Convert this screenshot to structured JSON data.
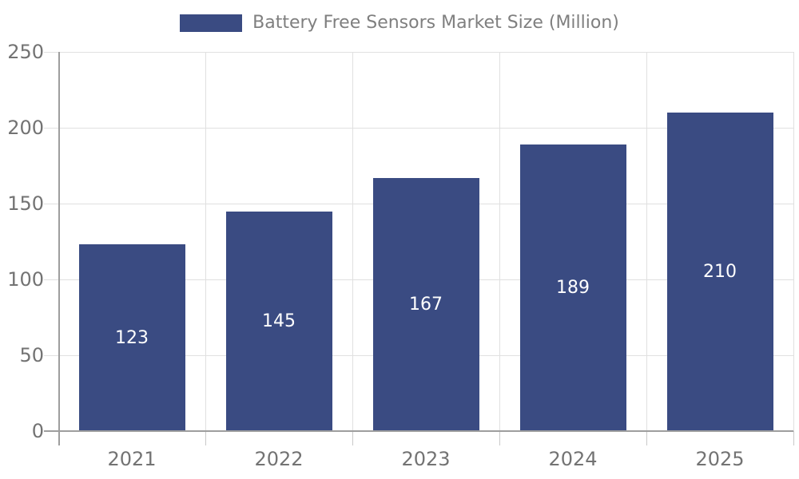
{
  "chart_data": {
    "type": "bar",
    "title": "Battery Free Sensors Market Size (Million)",
    "categories": [
      "2021",
      "2022",
      "2023",
      "2024",
      "2025"
    ],
    "series": [
      {
        "name": "Battery Free Sensors Market Size (Million)",
        "values": [
          123,
          145,
          167,
          189,
          210
        ]
      }
    ],
    "xlabel": "",
    "ylabel": "",
    "ylim": [
      0,
      250
    ],
    "yticks": [
      0,
      50,
      100,
      150,
      200,
      250
    ],
    "grid": true,
    "legend_position": "top-center",
    "value_label_position": "inside-center",
    "colors": {
      "bar": "#3A4B82",
      "grid": "#e0e0e0",
      "axis": "#9e9e9e",
      "tick": "#c9c9c9",
      "text": "#737373",
      "title": "#7f7f7f",
      "value_label": "#ffffff",
      "background": "#ffffff"
    }
  }
}
